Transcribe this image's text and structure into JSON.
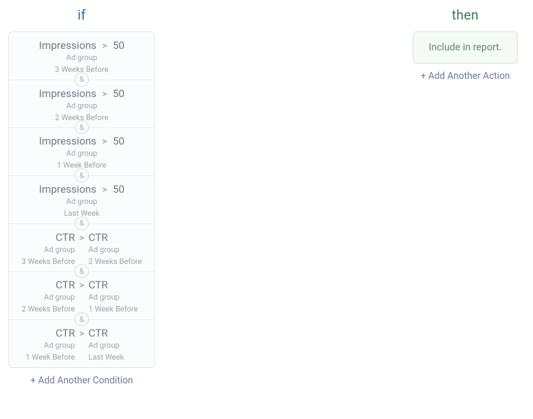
{
  "labels": {
    "if": "if",
    "then": "then",
    "add_condition": "+ Add Another Condition",
    "add_action": "+ Add Another Action",
    "connector": "&"
  },
  "conditions": [
    {
      "type": "value",
      "metric": "Impressions",
      "op": ">",
      "value": "50",
      "scope": "Ad group",
      "period": "3 Weeks Before"
    },
    {
      "type": "value",
      "metric": "Impressions",
      "op": ">",
      "value": "50",
      "scope": "Ad group",
      "period": "2 Weeks Before"
    },
    {
      "type": "value",
      "metric": "Impressions",
      "op": ">",
      "value": "50",
      "scope": "Ad group",
      "period": "1 Week Before"
    },
    {
      "type": "value",
      "metric": "Impressions",
      "op": ">",
      "value": "50",
      "scope": "Ad group",
      "period": "Last Week"
    },
    {
      "type": "compare",
      "op": ">",
      "left": {
        "metric": "CTR",
        "scope": "Ad group",
        "period": "3 Weeks Before"
      },
      "right": {
        "metric": "CTR",
        "scope": "Ad group",
        "period": "2 Weeks Before"
      }
    },
    {
      "type": "compare",
      "op": ">",
      "left": {
        "metric": "CTR",
        "scope": "Ad group",
        "period": "2 Weeks Before"
      },
      "right": {
        "metric": "CTR",
        "scope": "Ad group",
        "period": "1 Week Before"
      }
    },
    {
      "type": "compare",
      "op": ">",
      "left": {
        "metric": "CTR",
        "scope": "Ad group",
        "period": "1 Week Before"
      },
      "right": {
        "metric": "CTR",
        "scope": "Ad group",
        "period": "Last Week"
      }
    }
  ],
  "actions": [
    {
      "label": "Include in report."
    }
  ],
  "colors": {
    "if_header": "#1a6fc4",
    "then_header": "#2e7d46",
    "box_border": "#e3e7ea",
    "box_bg": "#fbfcfd",
    "text_primary": "#6b7a86",
    "text_secondary": "#9aa5af",
    "action_border": "#cde7cf",
    "action_bg": "#f4fbf3",
    "action_text": "#5a8a5e",
    "link": "#6b7a99"
  }
}
